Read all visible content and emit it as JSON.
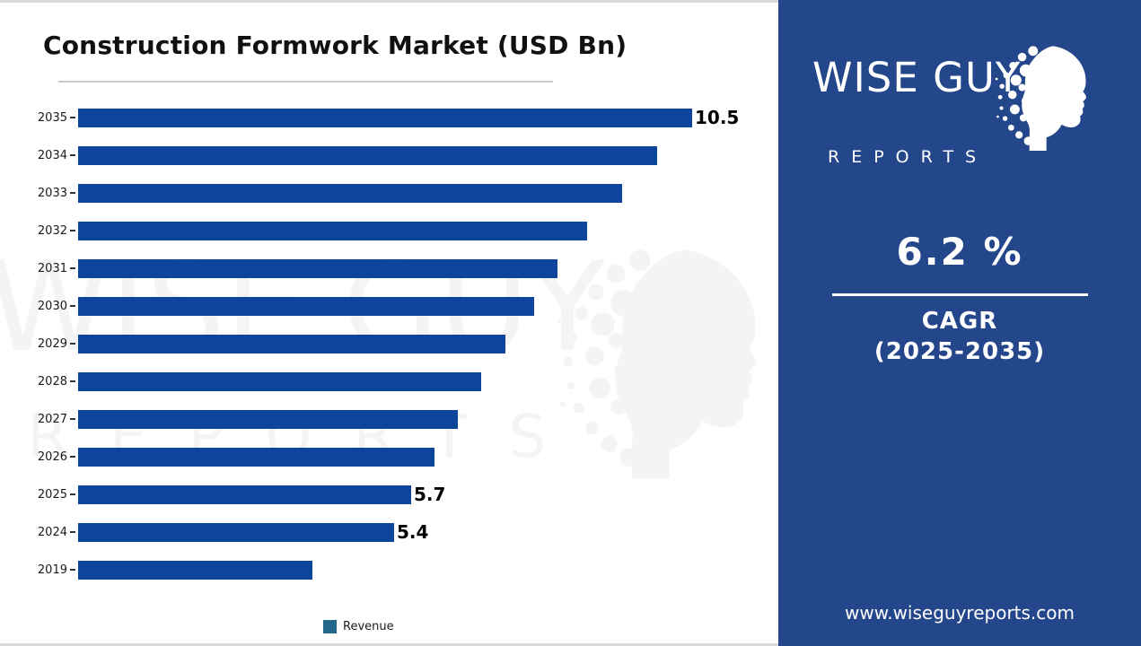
{
  "chart_data": {
    "type": "bar",
    "orientation": "horizontal",
    "title": "Construction Formwork Market (USD Bn)",
    "unit": "USD Bn",
    "categories": [
      "2035",
      "2034",
      "2033",
      "2032",
      "2031",
      "2030",
      "2029",
      "2028",
      "2027",
      "2026",
      "2025",
      "2024",
      "2019"
    ],
    "values": [
      10.5,
      9.9,
      9.3,
      8.7,
      8.2,
      7.8,
      7.3,
      6.9,
      6.5,
      6.1,
      5.7,
      5.4,
      4.0
    ],
    "value_labels": [
      "10.5",
      "",
      "",
      "",
      "",
      "",
      "",
      "",
      "",
      "",
      "5.7",
      "5.4",
      ""
    ],
    "xlabel": "",
    "ylabel": "",
    "xlim": [
      0,
      10.5
    ],
    "grid": false,
    "legend": [
      "Revenue"
    ],
    "legend_position": "bottom"
  },
  "chart": {
    "title": "Construction Formwork Market (USD Bn)",
    "legend_label": "Revenue"
  },
  "watermark": {
    "line1": "WISE GUY",
    "line2": "REPORTS"
  },
  "panel": {
    "logo_line1": "WISE GUY",
    "logo_line2": "REPORTS",
    "cagr_value": "6.2 %",
    "cagr_label": "CAGR",
    "cagr_period": "(2025-2035)",
    "website": "www.wiseguyreports.com"
  },
  "colors": {
    "bar": "#0D459C",
    "legend_swatch": "#25678A",
    "panel_bg": "#24468B",
    "watermark": "#F4F4F4",
    "edge_line": "#D9D9D9"
  }
}
